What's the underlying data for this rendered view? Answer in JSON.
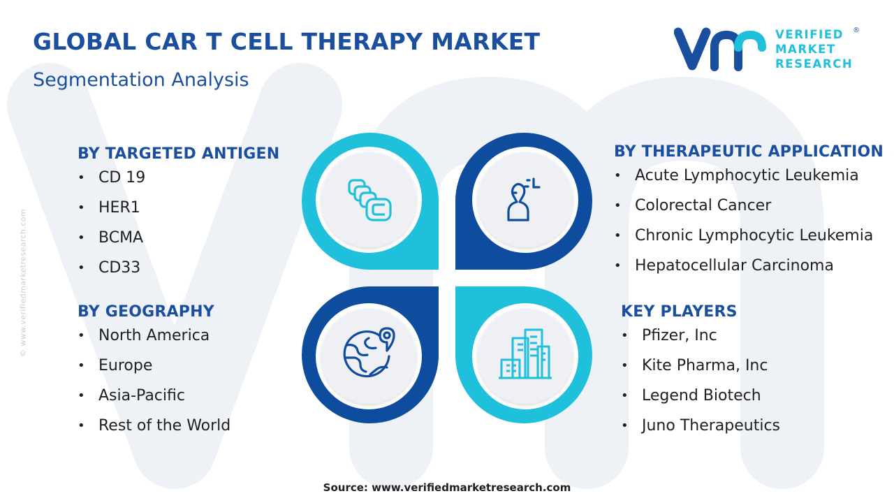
{
  "header": {
    "title": "GLOBAL CAR T CELL THERAPY MARKET",
    "subtitle": "Segmentation Analysis"
  },
  "logo": {
    "line1": "VERIFIED",
    "line2": "MARKET",
    "line3": "RESEARCH",
    "mark": "®"
  },
  "side_url": "© www.verifiedmarketresearch.com",
  "segments": {
    "antigen": {
      "heading": "BY TARGETED ANTIGEN",
      "items": [
        "CD 19",
        "HER1",
        "BCMA",
        "CD33"
      ]
    },
    "geography": {
      "heading": "BY GEOGRAPHY",
      "items": [
        "North America",
        "Europe",
        "Asia-Pacific",
        "Rest of the World"
      ]
    },
    "application": {
      "heading": "BY THERAPEUTIC APPLICATION",
      "items": [
        "Acute Lymphocytic Leukemia",
        "Colorectal Cancer",
        "Chronic Lymphocytic Leukemia",
        "Hepatocellular Carcinoma"
      ]
    },
    "players": {
      "heading": "KEY PLAYERS",
      "items": [
        "Pfizer, Inc",
        "Kite Pharma, Inc",
        "Legend Biotech",
        "Juno Therapeutics"
      ]
    }
  },
  "icons": {
    "top_left": "cells-icon",
    "top_right": "patient-icon",
    "bottom_left": "globe-location-icon",
    "bottom_right": "buildings-icon"
  },
  "colors": {
    "brand_blue": "#1a4fa0",
    "cyan": "#1ec0dc",
    "dark_blue": "#0e4c9e",
    "text": "#1f1f1f"
  },
  "source": "Source: www.verifiedmarketresearch.com"
}
